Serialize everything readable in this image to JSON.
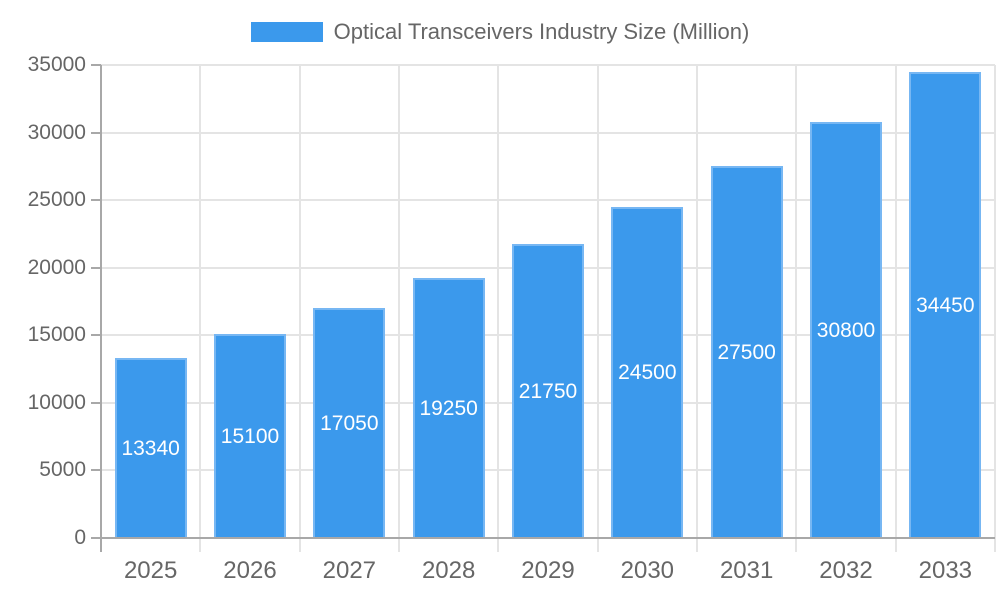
{
  "chart_data": {
    "type": "bar",
    "title": "Optical Transceivers Industry Size (Million)",
    "legend_position": "top",
    "categories": [
      "2025",
      "2026",
      "2027",
      "2028",
      "2029",
      "2030",
      "2031",
      "2032",
      "2033"
    ],
    "values": [
      13340,
      15100,
      17050,
      19250,
      21750,
      24500,
      27500,
      30800,
      34450
    ],
    "series": [
      {
        "name": "Optical Transceivers Industry Size (Million)",
        "values": [
          13340,
          15100,
          17050,
          19250,
          21750,
          24500,
          27500,
          30800,
          34450
        ]
      }
    ],
    "xlabel": "",
    "ylabel": "",
    "ylim": [
      0,
      35000
    ],
    "yticks": [
      0,
      5000,
      10000,
      15000,
      20000,
      25000,
      30000,
      35000
    ],
    "grid": true,
    "bar_value_labels": "centered-white"
  },
  "colors": {
    "bar_fill": "#3b99ec",
    "bar_edge": "#77b7f3",
    "bar_label_text": "#ffffff",
    "grid_line": "#e4e4e4",
    "axis_line": "#a8a8a8",
    "tick_label_text": "#666666",
    "legend_text": "#666666",
    "background": "#ffffff"
  }
}
